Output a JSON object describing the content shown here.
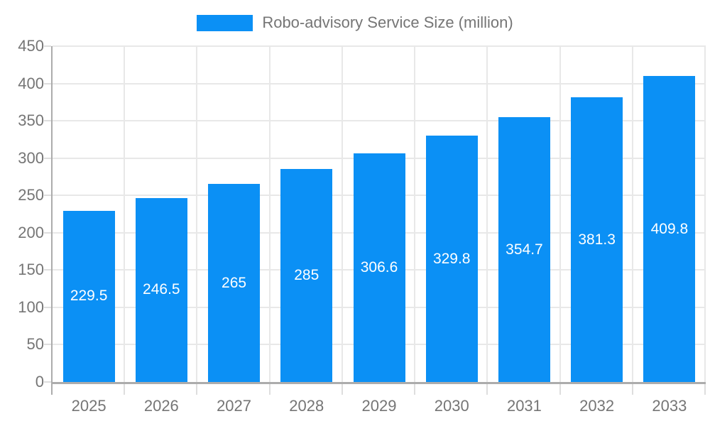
{
  "legend": {
    "label": "Robo-advisory Service Size (million)"
  },
  "chart_data": {
    "type": "bar",
    "title": "Robo-advisory Service Size (million)",
    "series_name": "Robo-advisory Service Size (million)",
    "categories": [
      "2025",
      "2026",
      "2027",
      "2028",
      "2029",
      "2030",
      "2031",
      "2032",
      "2033"
    ],
    "values": [
      229.5,
      246.5,
      265,
      285,
      306.6,
      329.8,
      354.7,
      381.3,
      409.8
    ],
    "value_labels": [
      "229.5",
      "246.5",
      "265",
      "285",
      "306.6",
      "329.8",
      "354.7",
      "381.3",
      "409.8"
    ],
    "xlabel": "",
    "ylabel": "",
    "ylim": [
      0,
      450
    ],
    "ytick_step": 50,
    "ytick_labels": [
      "0",
      "50",
      "100",
      "150",
      "200",
      "250",
      "300",
      "350",
      "400",
      "450"
    ],
    "grid": true,
    "legend_position": "top",
    "value_label_position": "center-inside",
    "value_label_color": "#ffffff"
  },
  "colors": {
    "bar": "#0b90f5",
    "axis_text": "#757575",
    "axis_line": "#acacac",
    "gridline": "#e8e8e8",
    "tick": "#dedede",
    "background": "#ffffff"
  }
}
